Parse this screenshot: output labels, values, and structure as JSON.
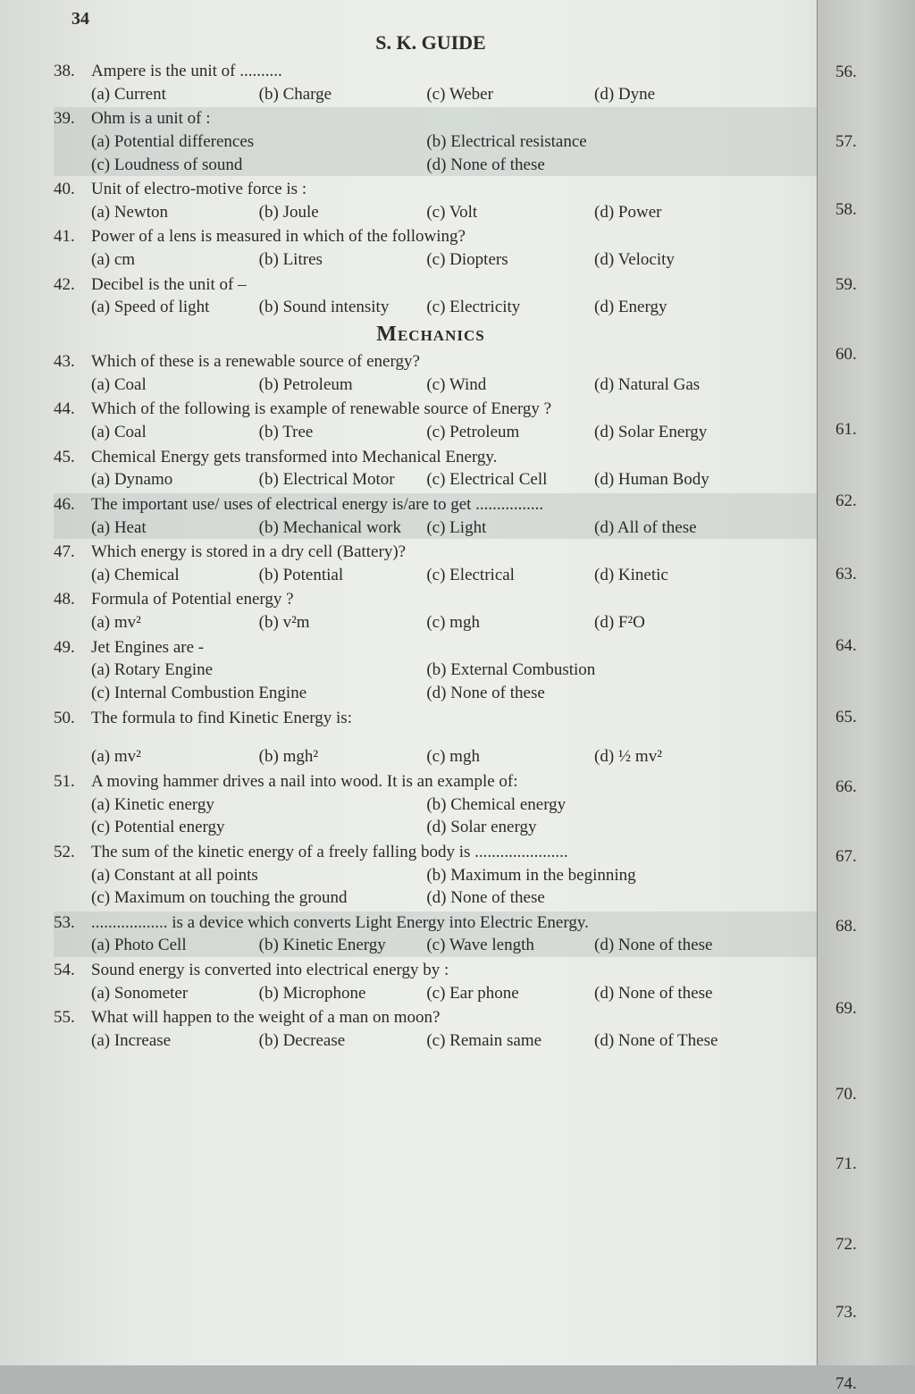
{
  "page_number": "34",
  "book_title": "S. K. GUIDE",
  "section_heading": "Mechanics",
  "right_margin": [
    "56.",
    "57.",
    "58.",
    "59.",
    "60.",
    "61.",
    "62.",
    "63.",
    "64.",
    "65.",
    "66.",
    "67.",
    "68.",
    "69.",
    "70.",
    "71.",
    "72.",
    "73.",
    "74."
  ],
  "questions": [
    {
      "num": "38.",
      "text": "Ampere is the unit of ..........",
      "opts": [
        {
          "label": "(a) Current"
        },
        {
          "label": "(b) Charge"
        },
        {
          "label": "(c) Weber"
        },
        {
          "label": "(d) Dyne"
        }
      ],
      "cols": 4
    },
    {
      "num": "39.",
      "text": "Ohm is a unit of :",
      "highlighted": true,
      "opts": [
        {
          "label": "(a) Potential differences"
        },
        {
          "label": "(b) Electrical resistance"
        },
        {
          "label": "(c) Loudness of sound"
        },
        {
          "label": "(d) None of these"
        }
      ],
      "cols": 2
    },
    {
      "num": "40.",
      "text": "Unit of electro-motive force is :",
      "opts": [
        {
          "label": "(a) Newton"
        },
        {
          "label": "(b) Joule"
        },
        {
          "label": "(c) Volt"
        },
        {
          "label": "(d) Power"
        }
      ],
      "cols": 4
    },
    {
      "num": "41.",
      "text": "Power of a lens is measured in which of the following?",
      "opts": [
        {
          "label": "(a) cm"
        },
        {
          "label": "(b) Litres"
        },
        {
          "label": "(c) Diopters"
        },
        {
          "label": "(d) Velocity"
        }
      ],
      "cols": 4
    },
    {
      "num": "42.",
      "text": "Decibel is the unit of –",
      "opts": [
        {
          "label": "(a) Speed of light"
        },
        {
          "label": "(b) Sound intensity"
        },
        {
          "label": "(c) Electricity"
        },
        {
          "label": "(d) Energy"
        }
      ],
      "cols": 4
    }
  ],
  "questions2": [
    {
      "num": "43.",
      "text": "Which of these is a renewable source of energy?",
      "opts": [
        {
          "label": "(a) Coal"
        },
        {
          "label": "(b) Petroleum"
        },
        {
          "label": "(c) Wind"
        },
        {
          "label": "(d) Natural Gas"
        }
      ],
      "cols": 4
    },
    {
      "num": "44.",
      "text": "Which of the following is example of renewable source of Energy ?",
      "opts": [
        {
          "label": "(a) Coal"
        },
        {
          "label": "(b) Tree"
        },
        {
          "label": "(c) Petroleum"
        },
        {
          "label": "(d) Solar Energy"
        }
      ],
      "cols": 4
    },
    {
      "num": "45.",
      "text": "Chemical Energy gets transformed into Mechanical Energy.",
      "opts": [
        {
          "label": "(a) Dynamo"
        },
        {
          "label": "(b) Electrical Motor"
        },
        {
          "label": "(c) Electrical Cell"
        },
        {
          "label": "(d) Human Body"
        }
      ],
      "cols": 4
    },
    {
      "num": "46.",
      "text": "The important use/ uses of electrical energy is/are to get ................",
      "highlighted": true,
      "opts": [
        {
          "label": "(a) Heat"
        },
        {
          "label": "(b) Mechanical work"
        },
        {
          "label": "(c) Light"
        },
        {
          "label": "(d) All of these"
        }
      ],
      "cols": 4
    },
    {
      "num": "47.",
      "text": "Which energy is stored in a dry cell (Battery)?",
      "opts": [
        {
          "label": "(a) Chemical"
        },
        {
          "label": "(b) Potential"
        },
        {
          "label": "(c) Electrical"
        },
        {
          "label": "(d) Kinetic"
        }
      ],
      "cols": 4
    },
    {
      "num": "48.",
      "text": "Formula of Potential energy ?",
      "opts": [
        {
          "label": "(a) mv²"
        },
        {
          "label": "(b) v²m"
        },
        {
          "label": "(c) mgh"
        },
        {
          "label": "(d) F²O"
        }
      ],
      "cols": 4
    },
    {
      "num": "49.",
      "text": "Jet Engines are -",
      "opts": [
        {
          "label": "(a) Rotary Engine"
        },
        {
          "label": "(b) External Combustion"
        },
        {
          "label": "(c) Internal Combustion Engine"
        },
        {
          "label": "(d) None of these"
        }
      ],
      "cols": 2
    },
    {
      "num": "50.",
      "text": "The formula to find Kinetic Energy is:",
      "extra_space": true,
      "opts": [
        {
          "label": "(a) mv²"
        },
        {
          "label": "(b) mgh²"
        },
        {
          "label": "(c) mgh"
        },
        {
          "label": "(d) ½ mv²"
        }
      ],
      "cols": 4
    },
    {
      "num": "51.",
      "text": "A moving hammer drives a nail into wood. It is an example of:",
      "opts": [
        {
          "label": "(a) Kinetic energy"
        },
        {
          "label": "(b) Chemical energy"
        },
        {
          "label": "(c) Potential energy"
        },
        {
          "label": "(d) Solar energy"
        }
      ],
      "cols": 2
    },
    {
      "num": "52.",
      "text": "The sum of the kinetic energy of a freely falling body is ......................",
      "opts": [
        {
          "label": "(a) Constant at all points"
        },
        {
          "label": "(b) Maximum in the beginning"
        },
        {
          "label": "(c) Maximum on touching the ground"
        },
        {
          "label": "(d) None of these"
        }
      ],
      "cols": 2
    },
    {
      "num": "53.",
      "text": ".................. is a device which converts Light Energy into Electric Energy.",
      "highlighted": true,
      "opts": [
        {
          "label": "(a) Photo Cell"
        },
        {
          "label": "(b) Kinetic Energy"
        },
        {
          "label": "(c) Wave length"
        },
        {
          "label": "(d) None of these"
        }
      ],
      "cols": 4
    },
    {
      "num": "54.",
      "text": "Sound energy is converted into electrical energy by :",
      "opts": [
        {
          "label": "(a) Sonometer"
        },
        {
          "label": "(b) Microphone"
        },
        {
          "label": "(c) Ear phone"
        },
        {
          "label": "(d) None of these"
        }
      ],
      "cols": 4
    },
    {
      "num": "55.",
      "text": "What will happen to the weight of a man on moon?",
      "opts": [
        {
          "label": "(a) Increase"
        },
        {
          "label": "(b) Decrease"
        },
        {
          "label": "(c) Remain same"
        },
        {
          "label": "(d) None of These"
        }
      ],
      "cols": 4
    }
  ]
}
